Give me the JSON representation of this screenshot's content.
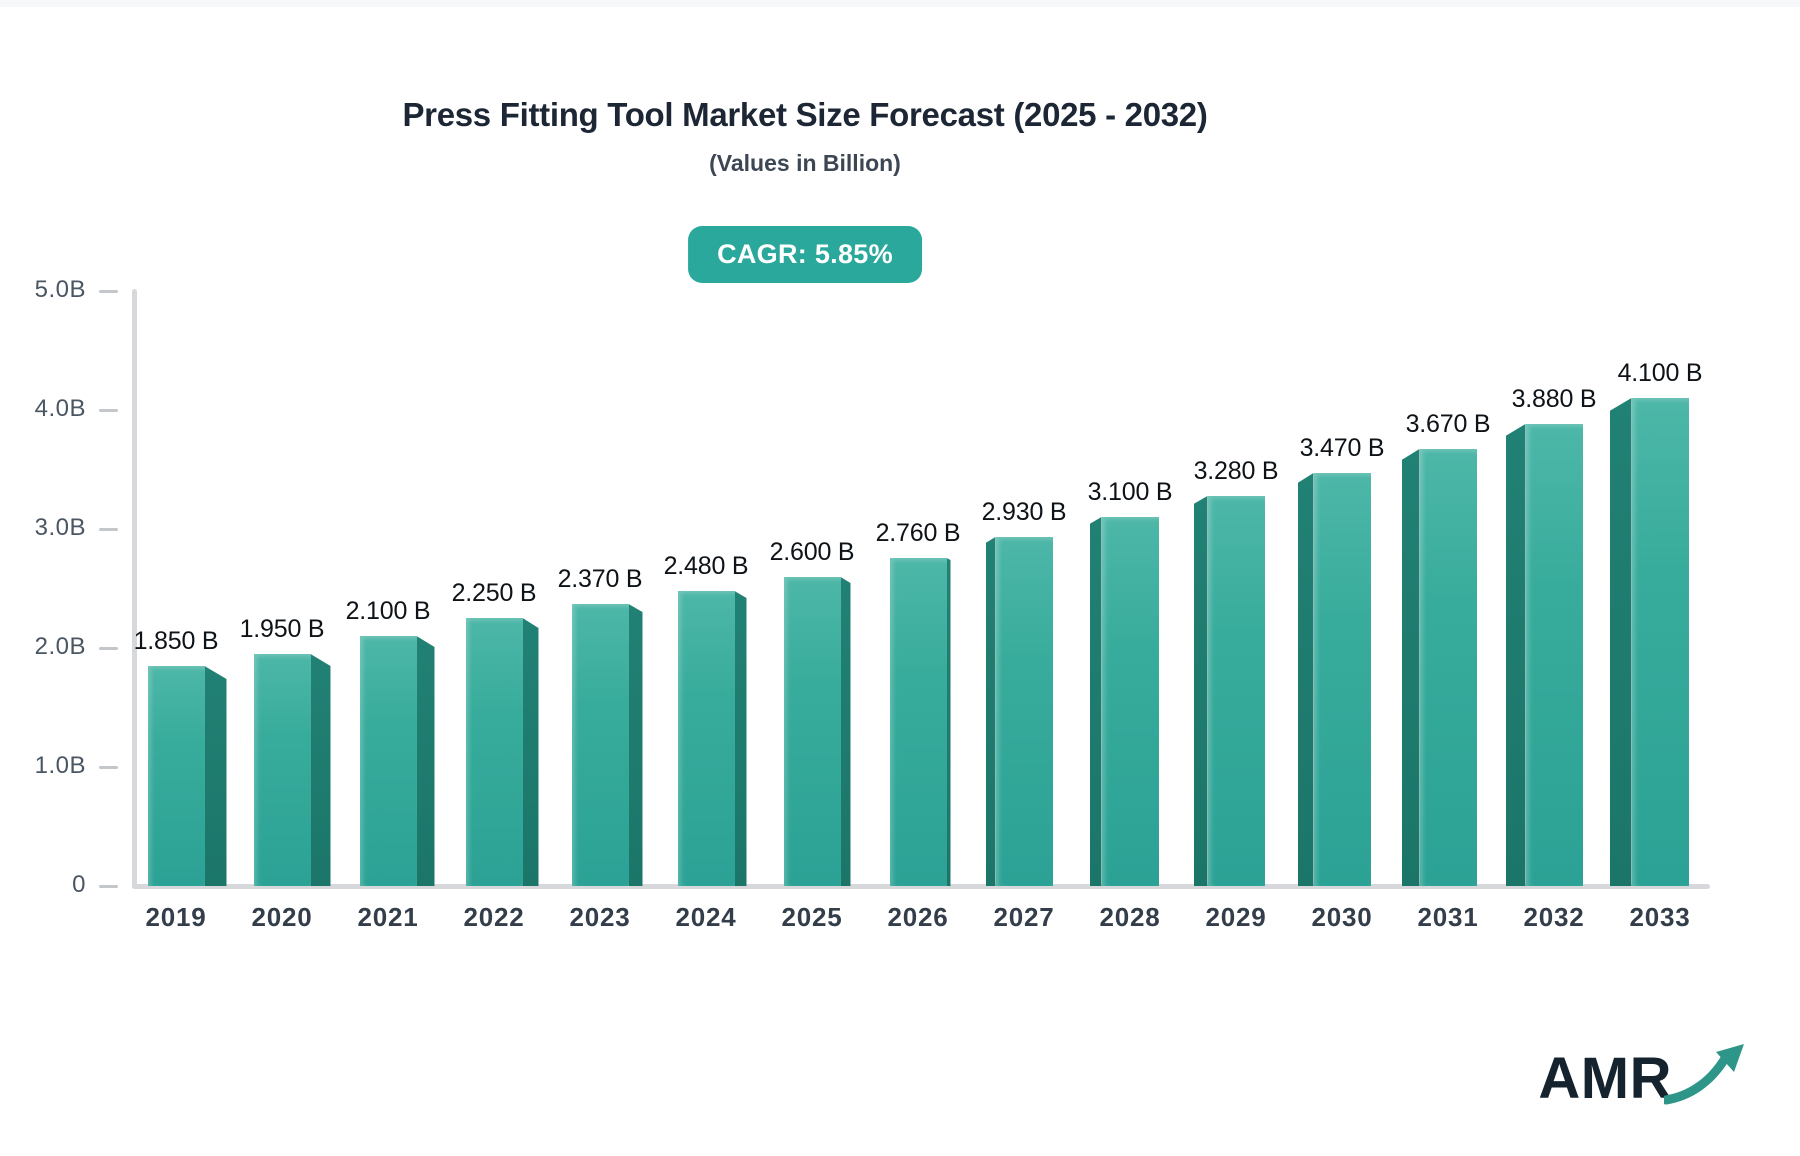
{
  "header": {
    "title": "Press Fitting Tool Market Size Forecast (2025 - 2032)",
    "subtitle": "(Values in Billion)",
    "cagr_label": "CAGR: 5.85%"
  },
  "chart_data": {
    "type": "bar",
    "title": "Press Fitting Tool Market Size Forecast (2025 - 2032)",
    "subtitle": "(Values in Billion)",
    "cagr": "5.85%",
    "categories": [
      "2019",
      "2020",
      "2021",
      "2022",
      "2023",
      "2024",
      "2025",
      "2026",
      "2027",
      "2028",
      "2029",
      "2030",
      "2031",
      "2032",
      "2033"
    ],
    "values": [
      1.85,
      1.95,
      2.1,
      2.25,
      2.37,
      2.48,
      2.6,
      2.76,
      2.93,
      3.1,
      3.28,
      3.47,
      3.67,
      3.88,
      4.1
    ],
    "bar_labels": [
      "1.850 B",
      "1.950 B",
      "2.100 B",
      "2.250 B",
      "2.370 B",
      "2.480 B",
      "2.600 B",
      "2.760 B",
      "2.930 B",
      "3.100 B",
      "3.280 B",
      "3.470 B",
      "3.670 B",
      "3.880 B",
      "4.100 B"
    ],
    "ytick_labels": [
      "5.0B",
      "4.0B",
      "3.0B",
      "2.0B",
      "1.0B",
      "0"
    ],
    "ytick_values": [
      5.0,
      4.0,
      3.0,
      2.0,
      1.0,
      0
    ],
    "ylim": [
      0,
      5
    ],
    "xlabel": "",
    "ylabel": "",
    "grid": false,
    "legend": false,
    "colors": {
      "bar_front_top": "#4db7a8",
      "bar_front_bottom": "#2ba295",
      "bar_side": "#1d7d71",
      "badge_bg": "#2aa89b",
      "axis_line": "#d6d8db",
      "tick_dash": "#c3c7cc",
      "value_label": "#0e1318",
      "axis_label": "#4b5663"
    }
  },
  "branding": {
    "logo_text": "AMR"
  }
}
